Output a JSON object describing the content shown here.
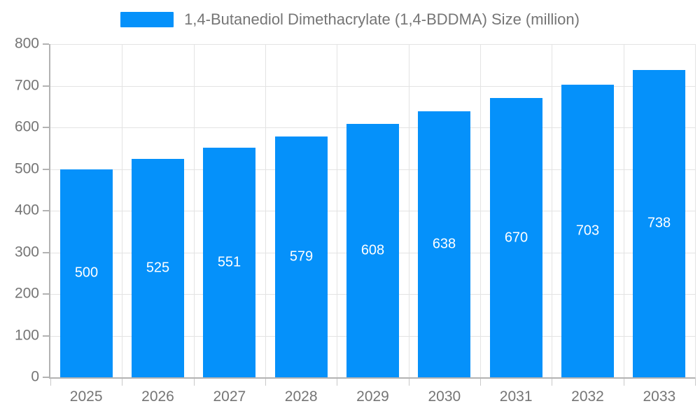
{
  "chart_data": {
    "type": "bar",
    "title": "1,4-Butanediol Dimethacrylate (1,4-BDDMA) Size (million)",
    "categories": [
      "2025",
      "2026",
      "2027",
      "2028",
      "2029",
      "2030",
      "2031",
      "2032",
      "2033"
    ],
    "series": [
      {
        "name": "1,4-Butanediol Dimethacrylate (1,4-BDDMA) Size (million)",
        "values": [
          500,
          525,
          551,
          579,
          608,
          638,
          670,
          703,
          738
        ]
      }
    ],
    "xlabel": "",
    "ylabel": "",
    "ylim": [
      0,
      800
    ],
    "yticks": [
      0,
      100,
      200,
      300,
      400,
      500,
      600,
      700,
      800
    ],
    "grid": true,
    "legend_position": "top"
  },
  "colors": {
    "bar": "#0591fa",
    "grid_line": "#e3e3e3",
    "axis_line": "#b3b3b3",
    "tick_mark": "#c9c9c9",
    "axis_text": "#757575",
    "bar_label_text": "#ffffff",
    "background": "#ffffff"
  }
}
